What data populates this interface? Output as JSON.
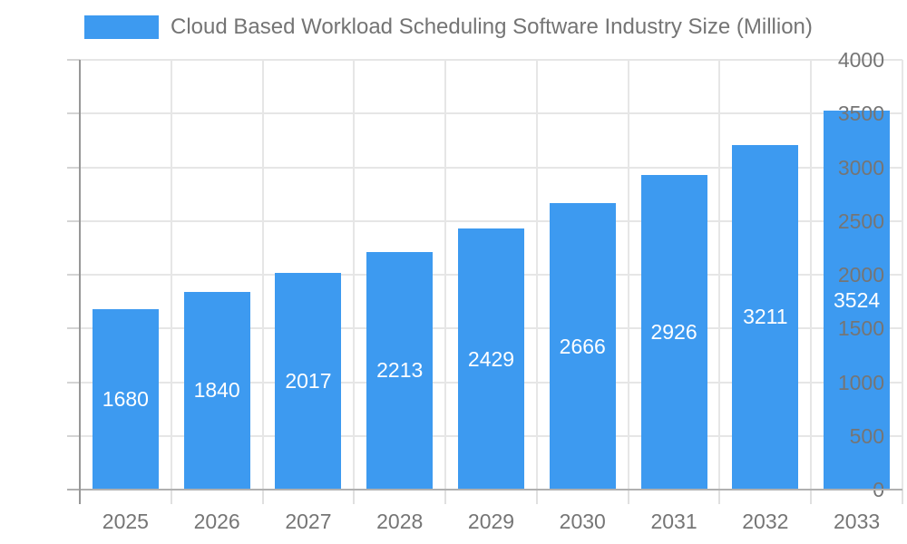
{
  "legend": {
    "label": "Cloud Based Workload Scheduling Software Industry Size (Million)",
    "swatch_color": "#3d9af0"
  },
  "chart_data": {
    "type": "bar",
    "title": "Cloud Based Workload Scheduling Software Industry Size (Million)",
    "categories": [
      "2025",
      "2026",
      "2027",
      "2028",
      "2029",
      "2030",
      "2031",
      "2032",
      "2033"
    ],
    "values": [
      1680,
      1840,
      2017,
      2213,
      2429,
      2666,
      2926,
      3211,
      3524
    ],
    "series": [
      {
        "name": "Cloud Based Workload Scheduling Software Industry Size (Million)",
        "values": [
          1680,
          1840,
          2017,
          2213,
          2429,
          2666,
          2926,
          3211,
          3524
        ]
      }
    ],
    "xlabel": "",
    "ylabel": "",
    "ylim": [
      0,
      4000
    ],
    "ytick_step": 500,
    "yticks": [
      0,
      500,
      1000,
      1500,
      2000,
      2500,
      3000,
      3500,
      4000
    ],
    "grid": true,
    "legend_position": "top-left",
    "colors": {
      "bar": "#3d9af0",
      "bar_value_label": "#ffffff",
      "axis_text": "#757575",
      "gridline": "#e6e6e6",
      "axis_line": "#979797"
    }
  }
}
